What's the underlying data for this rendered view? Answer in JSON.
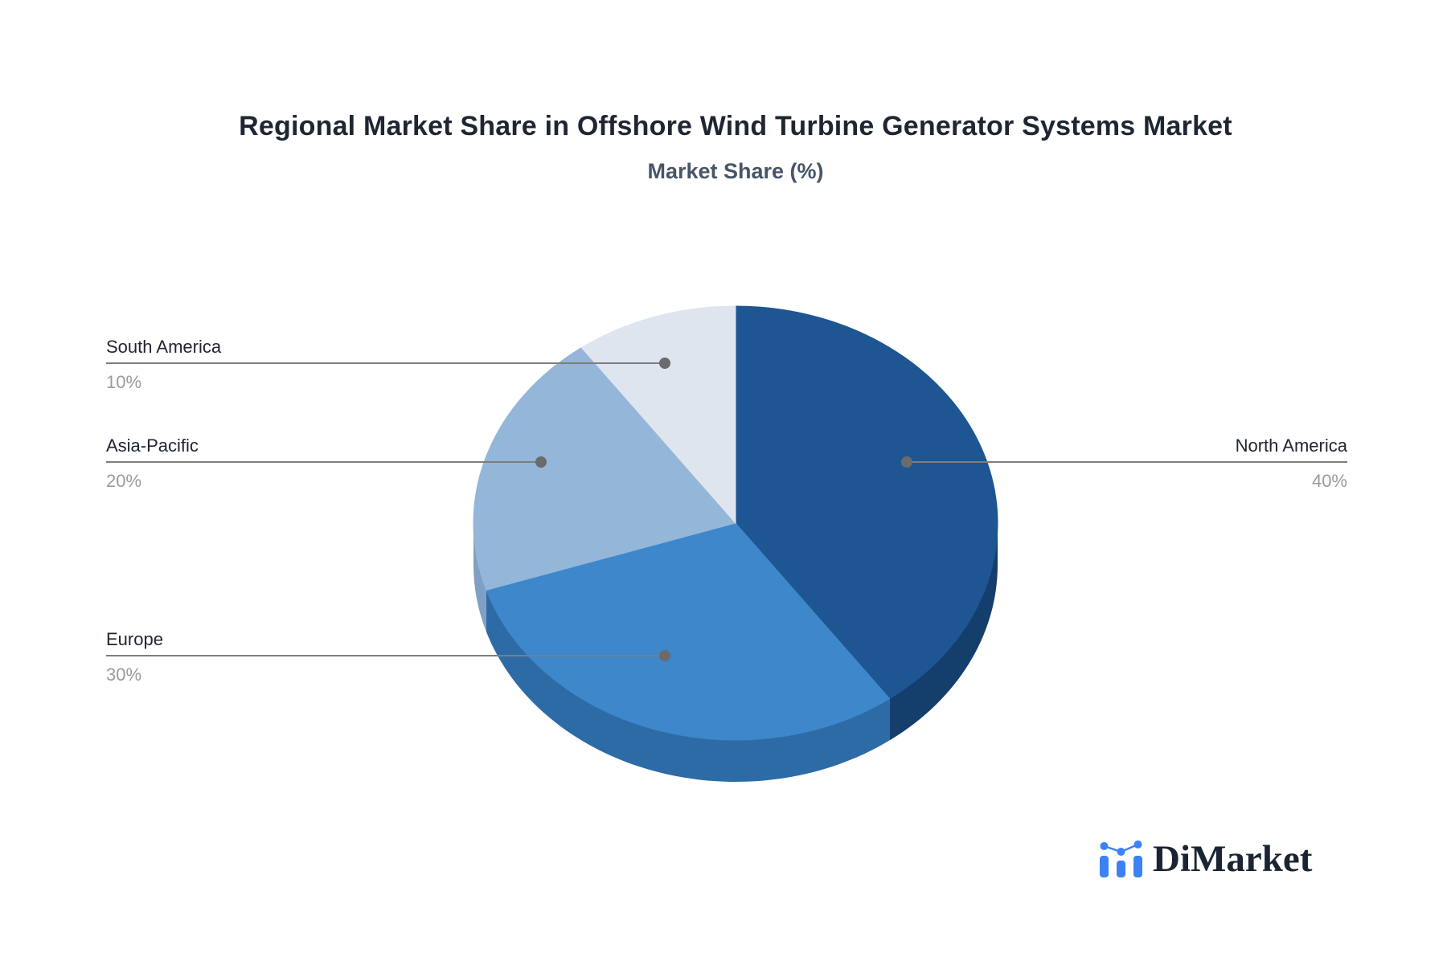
{
  "header": {
    "title": "Regional Market Share in Offshore Wind Turbine Generator Systems Market",
    "subtitle": "Market Share (%)"
  },
  "chart_data": {
    "type": "pie",
    "style": "3d",
    "title": "Regional Market Share in Offshore Wind Turbine Generator Systems Market",
    "subtitle": "Market Share (%)",
    "unit": "%",
    "categories": [
      "North America",
      "Europe",
      "Asia-Pacific",
      "South America"
    ],
    "values": [
      40,
      30,
      20,
      10
    ],
    "start_angle": "12-oclock",
    "direction": "clockwise",
    "colors": [
      "#1d5692",
      "#3d87ca",
      "#93b6d9",
      "#dfe5ef"
    ],
    "side_colors": [
      "#143e6b",
      "#2d6ba6",
      "#7fa0c4",
      "#c8d1df"
    ],
    "legend_position": "none",
    "label_style": "callout-lines",
    "callout_line_color": "#7e7e7e",
    "callout_dot_color": "#6b6b6b",
    "callouts": [
      {
        "slice": "south-america",
        "label": "South America",
        "value": "10%"
      },
      {
        "slice": "asia-pacific",
        "label": "Asia-Pacific",
        "value": "20%"
      },
      {
        "slice": "europe",
        "label": "Europe",
        "value": "30%"
      },
      {
        "slice": "north-america",
        "label": "North America",
        "value": "40%"
      }
    ]
  },
  "branding": {
    "logo_text": "DiMarket",
    "logo_icon": "bar-line-chart-icon",
    "logo_icon_color": "#3b82f6",
    "logo_text_color": "#1b2433"
  }
}
